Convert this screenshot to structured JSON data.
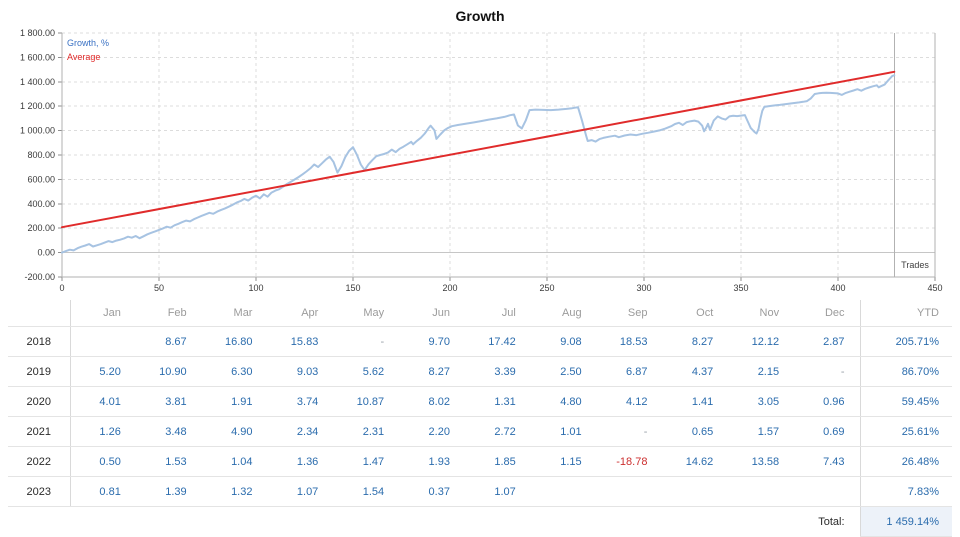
{
  "report": {
    "title": "Growth"
  },
  "chart": {
    "legend": [
      {
        "label": "Growth, %",
        "color": "#3b72c4"
      },
      {
        "label": "Average",
        "color": "#e02b2b"
      }
    ],
    "axis_unit_label": "Trades"
  },
  "chart_data": {
    "type": "line",
    "title": "Growth",
    "xlabel": "Trades",
    "ylabel": "Growth, %",
    "xlim": [
      0,
      450
    ],
    "ylim": [
      -200,
      1800
    ],
    "x_ticks": [
      0,
      50,
      100,
      150,
      200,
      250,
      300,
      350,
      400,
      450
    ],
    "y_ticks": [
      {
        "value": 1800,
        "label": "1 800.00"
      },
      {
        "value": 1600,
        "label": "1 600.00"
      },
      {
        "value": 1400,
        "label": "1 400.00"
      },
      {
        "value": 1200,
        "label": "1 200.00"
      },
      {
        "value": 1000,
        "label": "1 000.00"
      },
      {
        "value": 800,
        "label": "800.00"
      },
      {
        "value": 600,
        "label": "600.00"
      },
      {
        "value": 400,
        "label": "400.00"
      },
      {
        "value": 200,
        "label": "200.00"
      },
      {
        "value": 0,
        "label": "0.00"
      },
      {
        "value": -200,
        "label": "-200.00"
      }
    ],
    "grid": "dashed",
    "legend_position": "top-left",
    "data_end_x": 429,
    "series": [
      {
        "name": "Growth, %",
        "color": "#a7c3e2",
        "points": [
          [
            0,
            0
          ],
          [
            2,
            12
          ],
          [
            4,
            24
          ],
          [
            6,
            18
          ],
          [
            8,
            36
          ],
          [
            10,
            48
          ],
          [
            12,
            58
          ],
          [
            14,
            70
          ],
          [
            16,
            50
          ],
          [
            18,
            60
          ],
          [
            20,
            70
          ],
          [
            22,
            82
          ],
          [
            24,
            94
          ],
          [
            26,
            86
          ],
          [
            28,
            98
          ],
          [
            30,
            106
          ],
          [
            32,
            116
          ],
          [
            34,
            130
          ],
          [
            36,
            122
          ],
          [
            38,
            136
          ],
          [
            40,
            118
          ],
          [
            42,
            134
          ],
          [
            44,
            150
          ],
          [
            46,
            162
          ],
          [
            48,
            174
          ],
          [
            50,
            186
          ],
          [
            52,
            198
          ],
          [
            54,
            212
          ],
          [
            56,
            204
          ],
          [
            58,
            224
          ],
          [
            60,
            236
          ],
          [
            62,
            250
          ],
          [
            64,
            262
          ],
          [
            66,
            256
          ],
          [
            68,
            274
          ],
          [
            70,
            288
          ],
          [
            72,
            302
          ],
          [
            74,
            314
          ],
          [
            76,
            326
          ],
          [
            78,
            318
          ],
          [
            80,
            336
          ],
          [
            82,
            350
          ],
          [
            84,
            362
          ],
          [
            86,
            376
          ],
          [
            88,
            392
          ],
          [
            90,
            410
          ],
          [
            92,
            422
          ],
          [
            94,
            440
          ],
          [
            96,
            426
          ],
          [
            98,
            450
          ],
          [
            100,
            466
          ],
          [
            102,
            444
          ],
          [
            104,
            478
          ],
          [
            106,
            458
          ],
          [
            108,
            492
          ],
          [
            110,
            508
          ],
          [
            112,
            520
          ],
          [
            114,
            540
          ],
          [
            116,
            562
          ],
          [
            118,
            580
          ],
          [
            120,
            600
          ],
          [
            122,
            620
          ],
          [
            124,
            642
          ],
          [
            126,
            665
          ],
          [
            128,
            690
          ],
          [
            130,
            722
          ],
          [
            132,
            702
          ],
          [
            134,
            732
          ],
          [
            136,
            762
          ],
          [
            138,
            786
          ],
          [
            140,
            742
          ],
          [
            142,
            656
          ],
          [
            144,
            708
          ],
          [
            146,
            782
          ],
          [
            148,
            834
          ],
          [
            150,
            864
          ],
          [
            152,
            802
          ],
          [
            154,
            722
          ],
          [
            156,
            676
          ],
          [
            158,
            724
          ],
          [
            160,
            758
          ],
          [
            162,
            790
          ],
          [
            164,
            800
          ],
          [
            166,
            808
          ],
          [
            168,
            820
          ],
          [
            170,
            844
          ],
          [
            172,
            824
          ],
          [
            174,
            852
          ],
          [
            176,
            868
          ],
          [
            178,
            888
          ],
          [
            180,
            908
          ],
          [
            181,
            888
          ],
          [
            183,
            916
          ],
          [
            185,
            942
          ],
          [
            187,
            976
          ],
          [
            189,
            1022
          ],
          [
            190,
            1040
          ],
          [
            192,
            1002
          ],
          [
            193,
            932
          ],
          [
            195,
            968
          ],
          [
            197,
            1002
          ],
          [
            199,
            1022
          ],
          [
            201,
            1036
          ],
          [
            204,
            1046
          ],
          [
            208,
            1056
          ],
          [
            212,
            1066
          ],
          [
            216,
            1078
          ],
          [
            220,
            1090
          ],
          [
            224,
            1100
          ],
          [
            228,
            1112
          ],
          [
            231,
            1126
          ],
          [
            233,
            1132
          ],
          [
            235,
            1042
          ],
          [
            237,
            1018
          ],
          [
            239,
            1082
          ],
          [
            241,
            1168
          ],
          [
            244,
            1172
          ],
          [
            248,
            1170
          ],
          [
            252,
            1168
          ],
          [
            256,
            1172
          ],
          [
            260,
            1178
          ],
          [
            263,
            1184
          ],
          [
            266,
            1192
          ],
          [
            268,
            1085
          ],
          [
            270,
            968
          ],
          [
            271,
            915
          ],
          [
            273,
            922
          ],
          [
            275,
            910
          ],
          [
            277,
            930
          ],
          [
            279,
            940
          ],
          [
            282,
            950
          ],
          [
            285,
            958
          ],
          [
            287,
            946
          ],
          [
            290,
            960
          ],
          [
            293,
            968
          ],
          [
            296,
            962
          ],
          [
            299,
            974
          ],
          [
            302,
            982
          ],
          [
            305,
            992
          ],
          [
            308,
            1002
          ],
          [
            311,
            1016
          ],
          [
            314,
            1036
          ],
          [
            316,
            1054
          ],
          [
            318,
            1064
          ],
          [
            320,
            1046
          ],
          [
            322,
            1070
          ],
          [
            324,
            1077
          ],
          [
            326,
            1082
          ],
          [
            328,
            1074
          ],
          [
            330,
            1040
          ],
          [
            331,
            994
          ],
          [
            332,
            1022
          ],
          [
            333,
            1056
          ],
          [
            334,
            1006
          ],
          [
            336,
            1084
          ],
          [
            338,
            1116
          ],
          [
            340,
            1100
          ],
          [
            342,
            1090
          ],
          [
            344,
            1116
          ],
          [
            346,
            1121
          ],
          [
            348,
            1119
          ],
          [
            350,
            1123
          ],
          [
            352,
            1127
          ],
          [
            353,
            1092
          ],
          [
            355,
            1022
          ],
          [
            357,
            988
          ],
          [
            358,
            976
          ],
          [
            359,
            1012
          ],
          [
            360,
            1096
          ],
          [
            361,
            1162
          ],
          [
            362,
            1194
          ],
          [
            364,
            1199
          ],
          [
            366,
            1203
          ],
          [
            368,
            1207
          ],
          [
            370,
            1211
          ],
          [
            372,
            1215
          ],
          [
            374,
            1219
          ],
          [
            376,
            1223
          ],
          [
            378,
            1227
          ],
          [
            380,
            1231
          ],
          [
            382,
            1236
          ],
          [
            384,
            1242
          ],
          [
            386,
            1264
          ],
          [
            388,
            1300
          ],
          [
            390,
            1306
          ],
          [
            392,
            1309
          ],
          [
            394,
            1311
          ],
          [
            396,
            1309
          ],
          [
            398,
            1307
          ],
          [
            400,
            1305
          ],
          [
            402,
            1293
          ],
          [
            404,
            1309
          ],
          [
            406,
            1319
          ],
          [
            408,
            1329
          ],
          [
            410,
            1339
          ],
          [
            412,
            1327
          ],
          [
            414,
            1343
          ],
          [
            416,
            1353
          ],
          [
            418,
            1363
          ],
          [
            420,
            1371
          ],
          [
            421,
            1355
          ],
          [
            422,
            1363
          ],
          [
            424,
            1377
          ],
          [
            425,
            1396
          ],
          [
            426,
            1413
          ],
          [
            427,
            1431
          ],
          [
            428,
            1448
          ],
          [
            429,
            1453
          ]
        ]
      },
      {
        "name": "Average",
        "color": "#e02b2b",
        "points": [
          [
            0,
            208
          ],
          [
            429,
            1482
          ]
        ]
      }
    ]
  },
  "table": {
    "month_headers": [
      "Jan",
      "Feb",
      "Mar",
      "Apr",
      "May",
      "Jun",
      "Jul",
      "Aug",
      "Sep",
      "Oct",
      "Nov",
      "Dec"
    ],
    "ytd_header": "YTD",
    "rows": [
      {
        "year": "2018",
        "months": [
          "",
          "8.67",
          "16.80",
          "15.83",
          "-",
          "9.70",
          "17.42",
          "9.08",
          "18.53",
          "8.27",
          "12.12",
          "2.87"
        ],
        "ytd": "205.71%"
      },
      {
        "year": "2019",
        "months": [
          "5.20",
          "10.90",
          "6.30",
          "9.03",
          "5.62",
          "8.27",
          "3.39",
          "2.50",
          "6.87",
          "4.37",
          "2.15",
          "-"
        ],
        "ytd": "86.70%"
      },
      {
        "year": "2020",
        "months": [
          "4.01",
          "3.81",
          "1.91",
          "3.74",
          "10.87",
          "8.02",
          "1.31",
          "4.80",
          "4.12",
          "1.41",
          "3.05",
          "0.96"
        ],
        "ytd": "59.45%"
      },
      {
        "year": "2021",
        "months": [
          "1.26",
          "3.48",
          "4.90",
          "2.34",
          "2.31",
          "2.20",
          "2.72",
          "1.01",
          "-",
          "0.65",
          "1.57",
          "0.69"
        ],
        "ytd": "25.61%"
      },
      {
        "year": "2022",
        "months": [
          "0.50",
          "1.53",
          "1.04",
          "1.36",
          "1.47",
          "1.93",
          "1.85",
          "1.15",
          "-18.78",
          "14.62",
          "13.58",
          "7.43"
        ],
        "ytd": "26.48%"
      },
      {
        "year": "2023",
        "months": [
          "0.81",
          "1.39",
          "1.32",
          "1.07",
          "1.54",
          "0.37",
          "1.07",
          "",
          "",
          "",
          "",
          ""
        ],
        "ytd": "7.83%"
      }
    ],
    "total_label": "Total:",
    "total_value": "1 459.14%"
  },
  "colors": {
    "growth_line": "#a7c3e2",
    "average_line": "#e02b2b",
    "value_text": "#2b6cad",
    "negative_text": "#cc2f2f",
    "header_text": "#9b9b9b",
    "grid": "#dcdcdc",
    "total_cell_bg": "#edf2f9"
  }
}
